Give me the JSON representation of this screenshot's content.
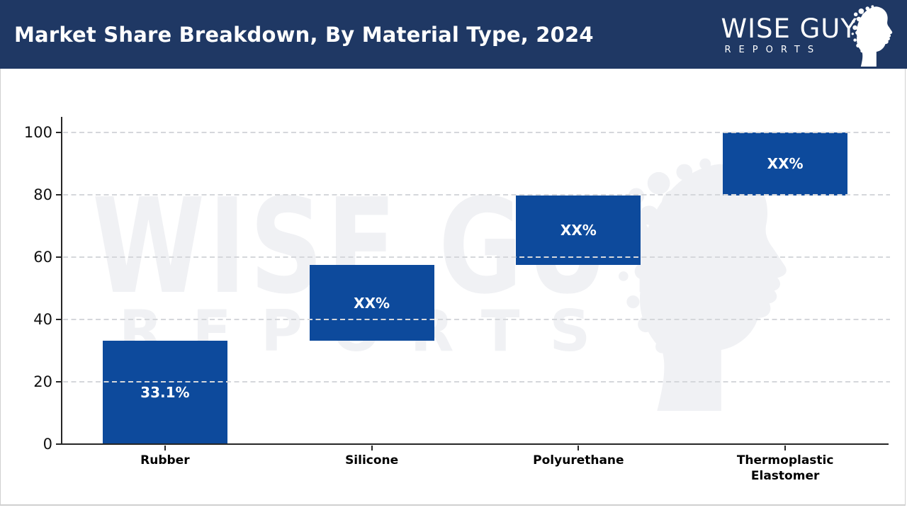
{
  "header": {
    "title": "Market Share Breakdown, By Material Type, 2024",
    "bg_color": "#1F3864",
    "logo": {
      "line1": "WISE GUY",
      "line2": "REPORTS"
    }
  },
  "watermark": {
    "line1": "WISE GUY",
    "line2": "REPORTS"
  },
  "chart_data": {
    "type": "bar",
    "subtype": "waterfall",
    "title": "Market Share Breakdown, By Material Type, 2024",
    "categories": [
      "Rubber",
      "Silicone",
      "Polyurethane",
      "Thermoplastic Elastomer"
    ],
    "segments": [
      {
        "category": "Rubber",
        "start": 0,
        "end": 33.1,
        "label": "33.1%"
      },
      {
        "category": "Silicone",
        "start": 33.1,
        "end": 57.4,
        "label": "XX%"
      },
      {
        "category": "Polyurethane",
        "start": 57.4,
        "end": 79.8,
        "label": "XX%"
      },
      {
        "category": "Thermoplastic Elastomer",
        "start": 79.8,
        "end": 100,
        "label": "XX%"
      }
    ],
    "yticks": [
      0,
      20,
      40,
      60,
      80,
      100
    ],
    "ylim": [
      0,
      105
    ],
    "xlabel": "",
    "ylabel": "",
    "bar_color": "#0D4A9C",
    "grid": true,
    "gridline_style": "dashed",
    "legend": false
  }
}
